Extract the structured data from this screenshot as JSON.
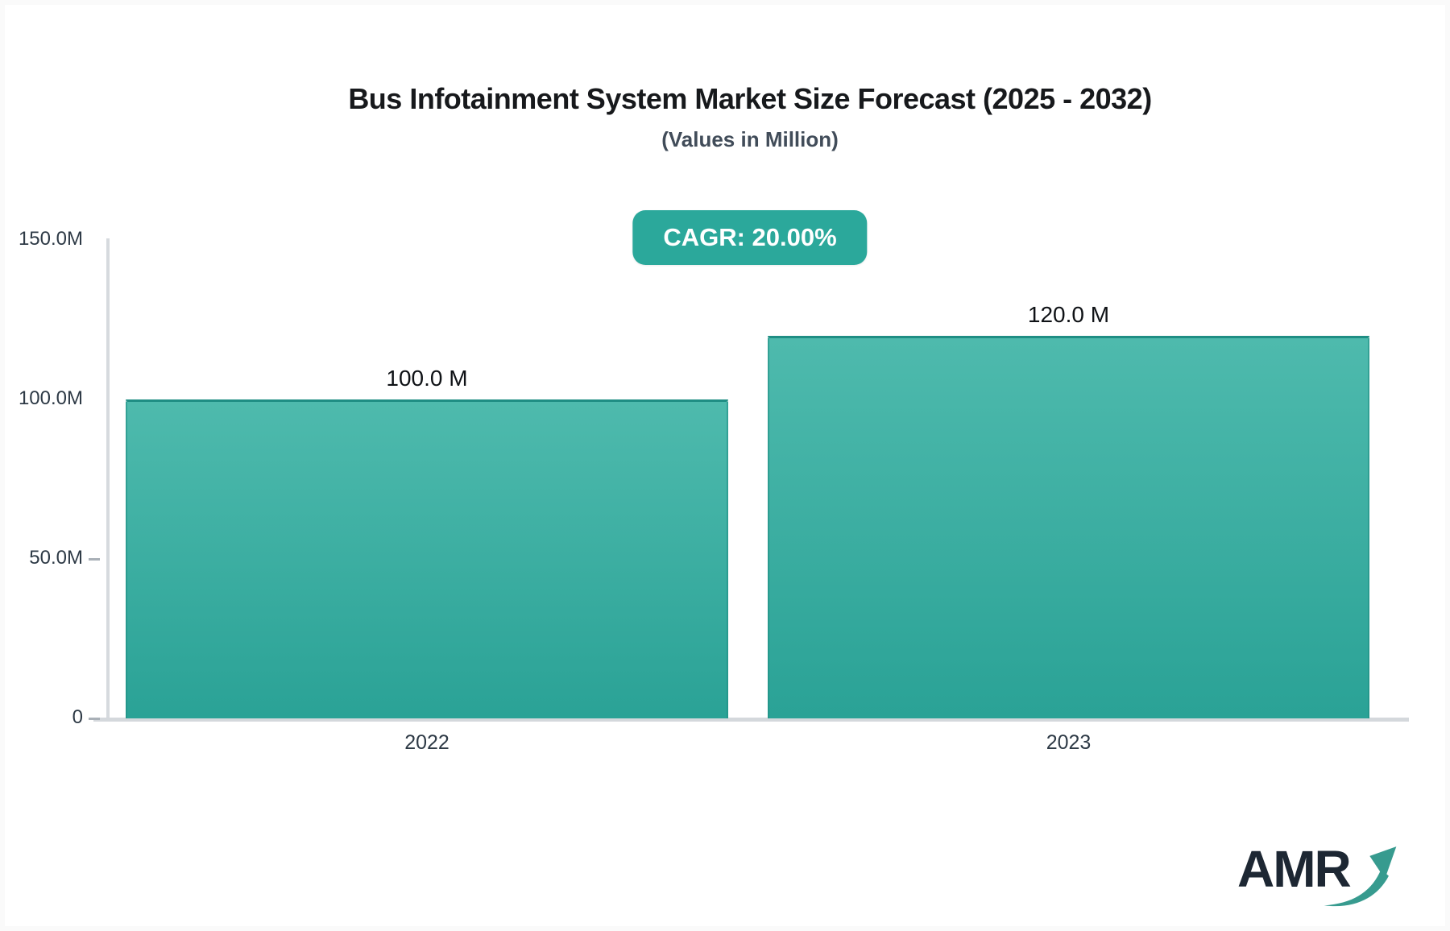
{
  "header": {
    "title": "Bus Infotainment System Market Size Forecast (2025 - 2032)",
    "subtitle": "(Values in Million)"
  },
  "badge": {
    "label": "CAGR: 20.00%",
    "bg_color": "#2ba89b",
    "text_color": "#ffffff"
  },
  "chart_data": {
    "type": "bar",
    "title": "Bus Infotainment System Market Size Forecast (2025 - 2032)",
    "subtitle": "(Values in Million)",
    "cagr_percent": 20.0,
    "categories": [
      "2022",
      "2023"
    ],
    "values": [
      100.0,
      120.0
    ],
    "data_labels": [
      "100.0 M",
      "120.0 M"
    ],
    "xlabel": "",
    "ylabel": "",
    "ylim": [
      0,
      150
    ],
    "yticks": [
      {
        "value": 0,
        "label": "0"
      },
      {
        "value": 50,
        "label": "50.0M"
      },
      {
        "value": 100,
        "label": "100.0M"
      },
      {
        "value": 150,
        "label": "150.0M"
      }
    ],
    "grid": false,
    "legend": false,
    "colors": {
      "bar_gradient_top": "#4ebaad",
      "bar_gradient_bottom": "#2aa296",
      "bar_border": "#1f8e84",
      "axis_line": "#d6dade",
      "tick_text": "#2e3a46"
    }
  },
  "logo": {
    "text": "AMR",
    "text_color": "#1d2733",
    "arrow_color": "#379b8f"
  }
}
